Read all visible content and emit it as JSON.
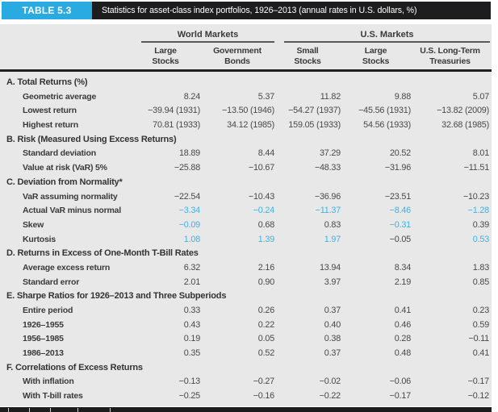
{
  "colors": {
    "accent": "#29ABE2",
    "highlight_value": "#3DB1E4",
    "header_bar": "#1D1D1F",
    "table_background": "#E8E8E9",
    "text": "#3A3A3C"
  },
  "table": {
    "tag": "TABLE 5.3",
    "caption": "Statistics for asset-class index portfolios, 1926–2013 (annual rates in U.S. dollars, %)",
    "column_groups": [
      {
        "label": "World Markets",
        "span": 2
      },
      {
        "label": "U.S. Markets",
        "span": 3
      }
    ],
    "columns": [
      {
        "line1": "Large",
        "line2": "Stocks"
      },
      {
        "line1": "Government",
        "line2": "Bonds"
      },
      {
        "line1": "Small",
        "line2": "Stocks"
      },
      {
        "line1": "Large",
        "line2": "Stocks"
      },
      {
        "line1": "U.S. Long-Term",
        "line2": "Treasuries"
      }
    ],
    "sections": [
      {
        "title": "A. Total Returns (%)",
        "rows": [
          {
            "label": "Geometric average",
            "values": [
              "8.24",
              "5.37",
              "11.82",
              "9.88",
              "5.07"
            ]
          },
          {
            "label": "Lowest return",
            "values": [
              "−39.94 (1931)",
              "−13.50 (1946)",
              "−54.27 (1937)",
              "−45.56 (1931)",
              "−13.82 (2009)"
            ]
          },
          {
            "label": "Highest return",
            "values": [
              "70.81 (1933)",
              "34.12 (1985)",
              "159.05 (1933)",
              "54.56 (1933)",
              "32.68 (1985)"
            ]
          }
        ]
      },
      {
        "title": "B. Risk (Measured Using Excess Returns)",
        "rows": [
          {
            "label": "Standard deviation",
            "values": [
              "18.89",
              "8.44",
              "37.29",
              "20.52",
              "8.01"
            ]
          },
          {
            "label": "Value at risk (VaR) 5%",
            "values": [
              "−25.88",
              "−10.67",
              "−48.33",
              "−31.96",
              "−11.51"
            ]
          }
        ]
      },
      {
        "title": "C. Deviation from Normality*",
        "rows": [
          {
            "label": "VaR assuming normality",
            "values": [
              "−22.54",
              "−10.43",
              "−36.96",
              "−23.51",
              "−10.23"
            ]
          },
          {
            "label": "Actual VaR minus normal",
            "values": [
              "−3.34",
              "−0.24",
              "−11.37",
              "−8.46",
              "−1.28"
            ],
            "highlight": [
              true,
              true,
              true,
              true,
              true
            ]
          },
          {
            "label": "Skew",
            "values": [
              "−0.09",
              "0.68",
              "0.83",
              "−0.31",
              "0.39"
            ],
            "highlight": [
              true,
              false,
              false,
              true,
              false
            ]
          },
          {
            "label": "Kurtosis",
            "values": [
              "1.08",
              "1.39",
              "1.97",
              "−0.05",
              "0.53"
            ],
            "highlight": [
              true,
              true,
              true,
              false,
              true
            ]
          }
        ]
      },
      {
        "title": "D. Returns in Excess of One-Month T-Bill Rates",
        "rows": [
          {
            "label": "Average excess return",
            "values": [
              "6.32",
              "2.16",
              "13.94",
              "8.34",
              "1.83"
            ]
          },
          {
            "label": "Standard error",
            "values": [
              "2.01",
              "0.90",
              "3.97",
              "2.19",
              "0.85"
            ]
          }
        ]
      },
      {
        "title": "E. Sharpe Ratios for 1926–2013 and Three Subperiods",
        "rows": [
          {
            "label": "Entire period",
            "values": [
              "0.33",
              "0.26",
              "0.37",
              "0.41",
              "0.23"
            ]
          },
          {
            "label": "1926–1955",
            "values": [
              "0.43",
              "0.22",
              "0.40",
              "0.46",
              "0.59"
            ]
          },
          {
            "label": "1956–1985",
            "values": [
              "0.19",
              "0.05",
              "0.38",
              "0.28",
              "−0.11"
            ]
          },
          {
            "label": "1986–2013",
            "values": [
              "0.35",
              "0.52",
              "0.37",
              "0.48",
              "0.41"
            ]
          }
        ]
      },
      {
        "title": "F. Correlations of Excess Returns",
        "rows": [
          {
            "label": "With inflation",
            "values": [
              "−0.13",
              "−0.27",
              "−0.02",
              "−0.06",
              "−0.17"
            ]
          },
          {
            "label": "With T-bill rates",
            "values": [
              "−0.25",
              "−0.16",
              "−0.22",
              "−0.17",
              "−0.12"
            ]
          }
        ]
      }
    ]
  }
}
